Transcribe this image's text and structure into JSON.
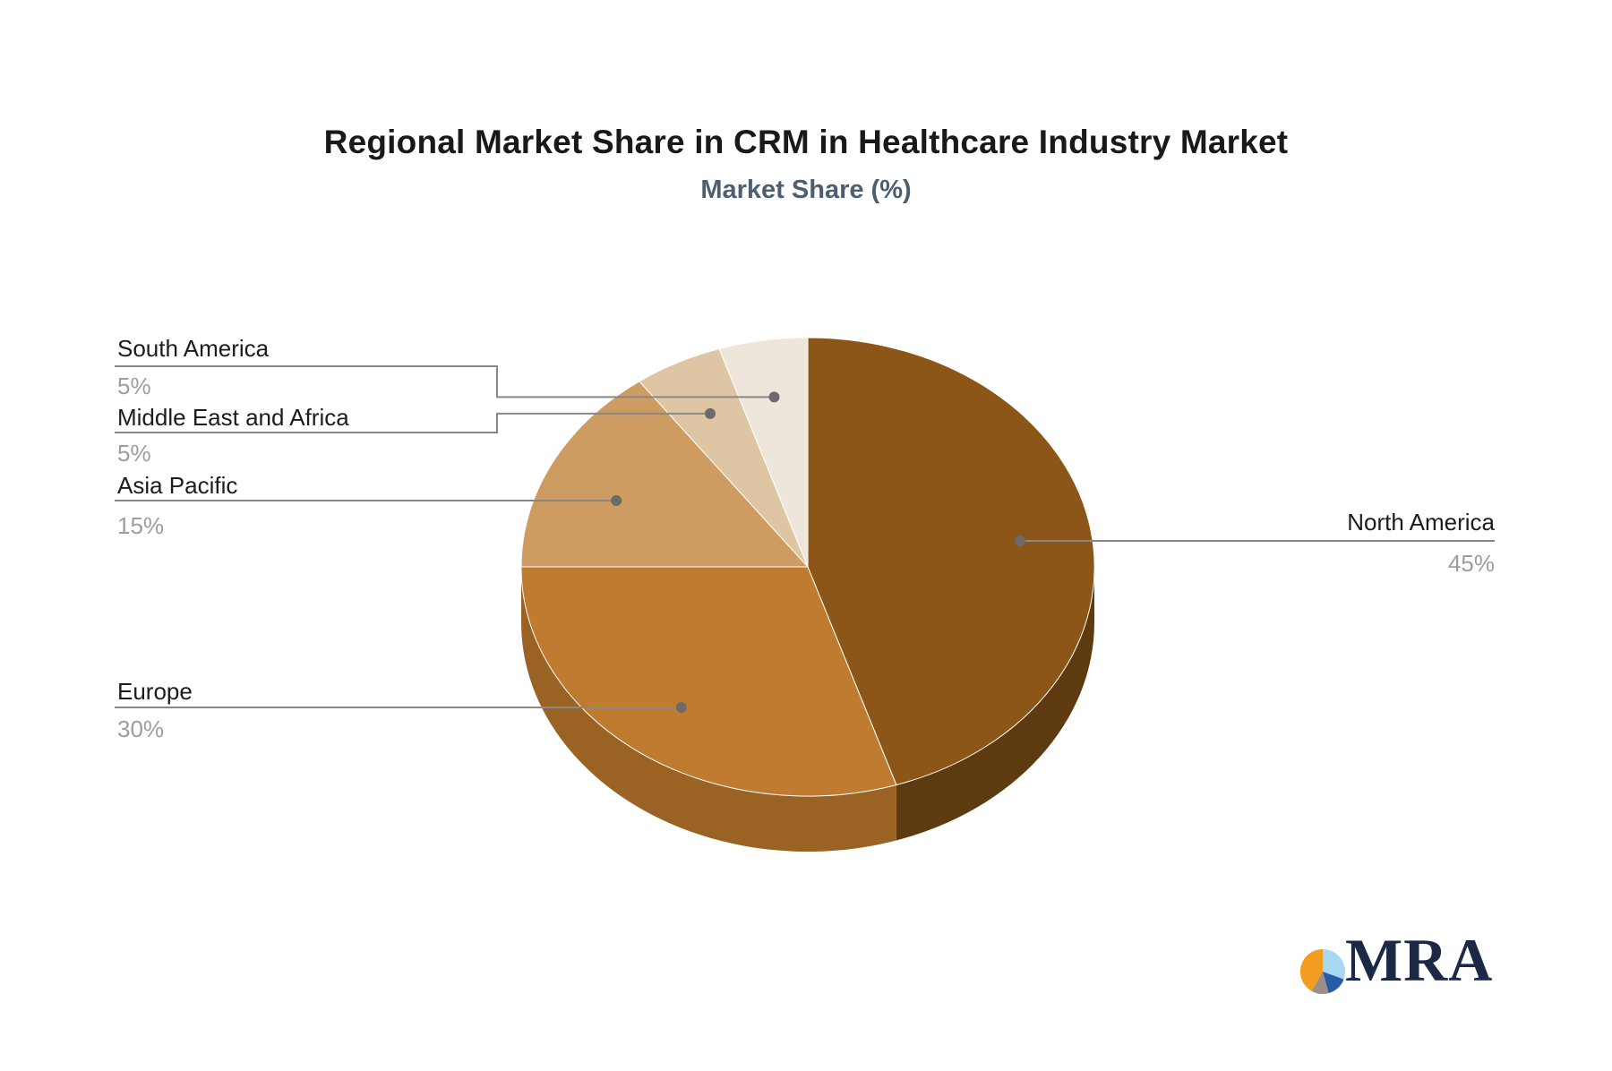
{
  "chart_data": {
    "type": "pie",
    "title": "Regional Market Share in CRM in Healthcare Industry Market",
    "subtitle": "Market Share (%)",
    "unit": "%",
    "total": 100,
    "start_angle_deg": 0,
    "direction": "clockwise",
    "effect": "3d",
    "legend_position": "callout-labels",
    "slices": [
      {
        "label": "North America",
        "value": 45,
        "display": "45%",
        "color": "#8B5618",
        "side_color": "#5D3A0F",
        "label_side": "right"
      },
      {
        "label": "Europe",
        "value": 30,
        "display": "30%",
        "color": "#BF7B2F",
        "side_color": "#9A6323",
        "label_side": "left"
      },
      {
        "label": "Asia Pacific",
        "value": 15,
        "display": "15%",
        "color": "#CE9B60",
        "side_color": "#A97F4C",
        "label_side": "left"
      },
      {
        "label": "Middle East and Africa",
        "value": 5,
        "display": "5%",
        "color": "#DEC5A3",
        "side_color": "#B7A184",
        "label_side": "left"
      },
      {
        "label": "South America",
        "value": 5,
        "display": "5%",
        "color": "#EFE6DB",
        "side_color": "#C6BDB2",
        "label_side": "left"
      }
    ],
    "colors": {
      "label_text": "#1A1C1F",
      "percent_text": "#999EA2",
      "connector_line": "#888888",
      "connector_dot": "#6B6B6B",
      "slice_border": "#FFFFFF",
      "title_text": "#17191C",
      "subtitle_text": "#4C5F70"
    }
  },
  "logo": {
    "text": "MRA",
    "text_color": "#1B2846",
    "icon": "pie-icon",
    "icon_colors": {
      "orange": "#F49C20",
      "light_blue": "#A6D8F2",
      "navy": "#2A5AA5",
      "gray": "#9A9088"
    }
  }
}
